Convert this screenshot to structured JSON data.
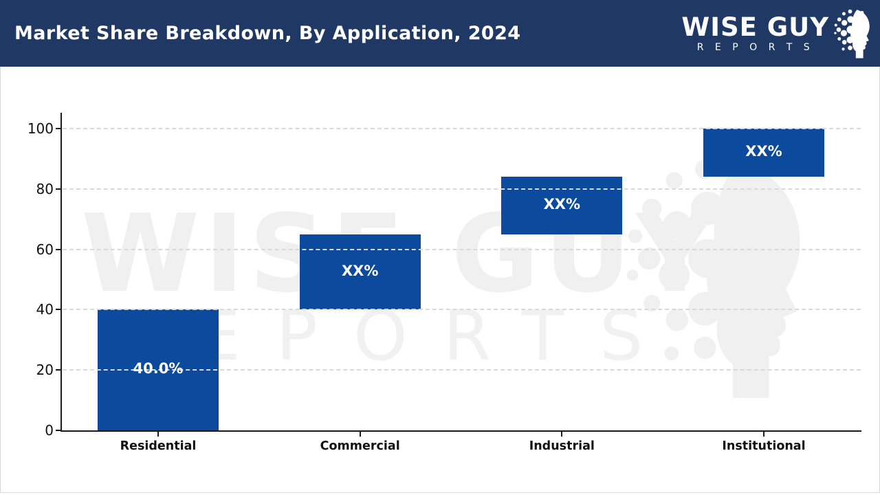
{
  "header": {
    "title": "Market Share Breakdown, By Application, 2024",
    "background_color": "#1F3864",
    "logo": {
      "line1": "WISE GUY",
      "line2": "R E P O R T S"
    }
  },
  "watermark": {
    "line1": "WISE GUY",
    "line2": "REPORTS",
    "color": "#f0f0f0"
  },
  "chart_data": {
    "type": "bar",
    "variant": "waterfall",
    "title": "Market Share Breakdown, By Application, 2024",
    "categories": [
      "Residential",
      "Commercial",
      "Industrial",
      "Institutional"
    ],
    "segments": [
      {
        "category": "Residential",
        "start": 0,
        "end": 40,
        "label": "40.0%"
      },
      {
        "category": "Commercial",
        "start": 40,
        "end": 65,
        "label": "XX%"
      },
      {
        "category": "Industrial",
        "start": 65,
        "end": 84,
        "label": "XX%"
      },
      {
        "category": "Institutional",
        "start": 84,
        "end": 100,
        "label": "XX%"
      }
    ],
    "y_ticks": [
      0,
      20,
      40,
      60,
      80,
      100
    ],
    "ylim": [
      0,
      105
    ],
    "xlabel": "",
    "ylabel": "",
    "grid": "horizontal-dashed",
    "legend": "none",
    "bar_color": "#0C4A9E",
    "bar_label_color": "#FFFFFF",
    "grid_color": "#d9d9d9",
    "axis_color": "#1a1a1a"
  }
}
